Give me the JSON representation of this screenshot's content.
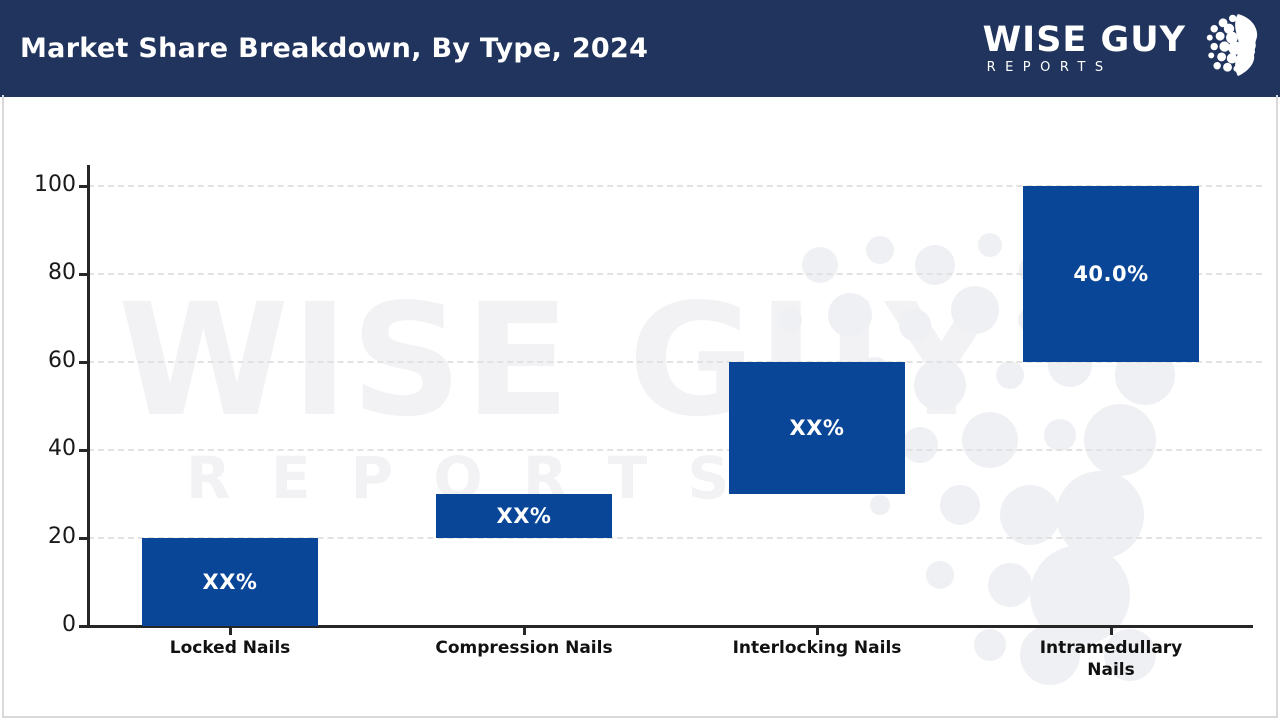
{
  "header": {
    "title": "Market Share Breakdown, By Type, 2024",
    "logo": {
      "brand": "WISE GUY",
      "sub": "REPORTS"
    }
  },
  "watermark": {
    "brand": "WISE GUY",
    "sub": "R E P O R T S"
  },
  "chart_data": {
    "type": "bar",
    "variant": "floating-segment-bars (waterfall style)",
    "title": "Market Share Breakdown, By Type, 2024",
    "categories": [
      "Locked Nails",
      "Compression Nails",
      "Interlocking Nails",
      "Intramedullary Nails"
    ],
    "xtick_labels": [
      "Locked Nails",
      "Compression Nails",
      "Interlocking Nails",
      "Intramedullary\nNails"
    ],
    "series": [
      {
        "name": "Market Share",
        "segments": [
          {
            "category": "Locked Nails",
            "start": 0,
            "end": 20,
            "label": "XX%"
          },
          {
            "category": "Compression Nails",
            "start": 20,
            "end": 30,
            "label": "XX%"
          },
          {
            "category": "Interlocking Nails",
            "start": 30,
            "end": 60,
            "label": "XX%"
          },
          {
            "category": "Intramedullary Nails",
            "start": 60,
            "end": 100,
            "label": "40.0%"
          }
        ]
      }
    ],
    "xlabel": "",
    "ylabel": "",
    "ylim": [
      0,
      100
    ],
    "yticks": [
      0,
      20,
      40,
      60,
      80,
      100
    ],
    "grid": "horizontal-dashed",
    "legend": "none",
    "bar_color": "#0a4697",
    "bar_label_color": "#ffffff"
  },
  "colors": {
    "header_bg": "#20345e",
    "axis": "#262626",
    "gridline": "#e2e2e2",
    "watermark": "#f2f2f5",
    "frame_border": "#d9d9d9"
  }
}
